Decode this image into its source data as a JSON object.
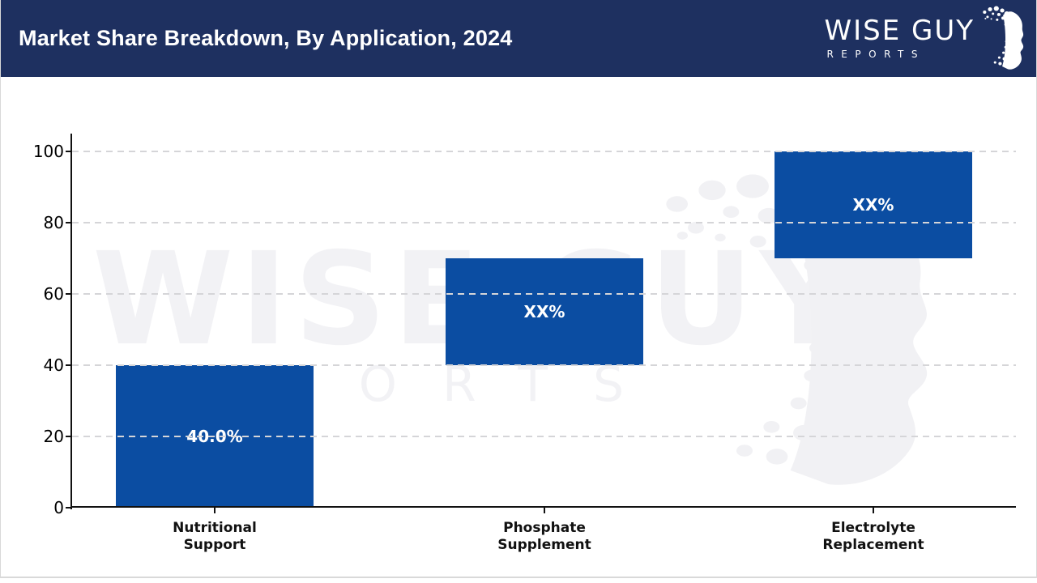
{
  "header": {
    "title": "Market Share Breakdown, By Application, 2024",
    "logo": {
      "line1": "WISE GUY",
      "line2": "REPORTS"
    }
  },
  "watermark": {
    "line1": "WISE GUY",
    "line2": "REPORTS"
  },
  "colors": {
    "header_bg": "#1e3060",
    "bar": "#0b4da2",
    "grid": "#d5d5d8",
    "axis": "#111111",
    "bar_label_text": "#ffffff",
    "watermark": "#f2f2f5"
  },
  "chart_data": {
    "type": "bar",
    "variant": "floating-segment (waterfall style market share)",
    "title": "Market Share Breakdown, By Application, 2024",
    "categories": [
      "Nutritional\nSupport",
      "Phosphate\nSupplement",
      "Electrolyte\nReplacement"
    ],
    "segments": [
      {
        "category": "Nutritional Support",
        "from": 0,
        "to": 40,
        "label": "40.0%"
      },
      {
        "category": "Phosphate Supplement",
        "from": 40,
        "to": 70,
        "label": "XX%"
      },
      {
        "category": "Electrolyte Replacement",
        "from": 70,
        "to": 100,
        "label": "XX%"
      }
    ],
    "ylim": [
      0,
      100
    ],
    "yticks": [
      0,
      20,
      40,
      60,
      80,
      100
    ],
    "xlabel": "",
    "ylabel": "",
    "grid": "horizontal dashed",
    "legend": "none"
  }
}
